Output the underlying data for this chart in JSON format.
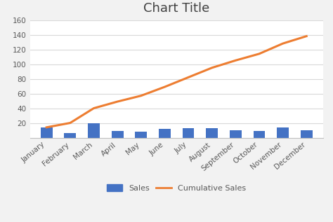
{
  "months": [
    "January",
    "February",
    "March",
    "April",
    "May",
    "June",
    "July",
    "August",
    "September",
    "October",
    "November",
    "December"
  ],
  "sales": [
    14,
    6,
    20,
    9,
    8,
    12,
    13,
    13,
    10,
    9,
    14,
    10
  ],
  "cumulative_sales": [
    14,
    20,
    40,
    49,
    57,
    69,
    82,
    95,
    105,
    114,
    128,
    138
  ],
  "bar_color": "#4472C4",
  "line_color": "#ED7D31",
  "title": "Chart Title",
  "title_fontsize": 13,
  "legend_labels": [
    "Sales",
    "Cumulative Sales"
  ],
  "ylim": [
    0,
    160
  ],
  "yticks": [
    0,
    20,
    40,
    60,
    80,
    100,
    120,
    140,
    160
  ],
  "background_color": "#F2F2F2",
  "plot_bg_color": "#FFFFFF",
  "grid_color": "#D9D9D9",
  "tick_label_fontsize": 7.5,
  "legend_fontsize": 8,
  "line_width": 2.2
}
